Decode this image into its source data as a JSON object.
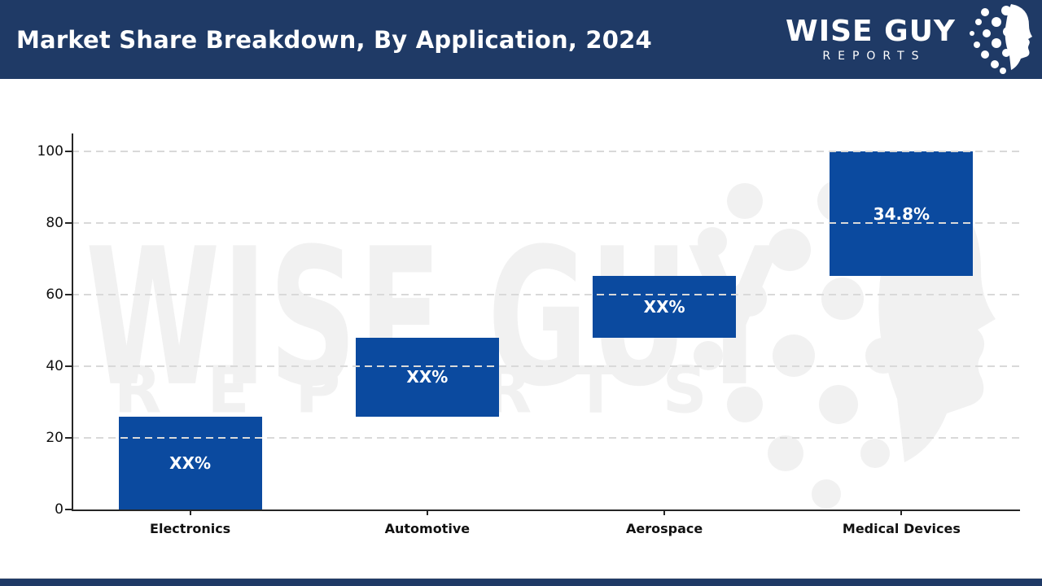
{
  "header": {
    "title": "Market Share Breakdown, By Application, 2024",
    "logo": {
      "line1": "WISE GUY",
      "line2": "REPORTS"
    }
  },
  "watermark": {
    "line1": "WISE GUY",
    "line2": "REPORTS"
  },
  "colors": {
    "header_navy": "#1f3a66",
    "bar_blue": "#0b4a9f",
    "gridline_gray": "#d9d9d9",
    "axis_black": "#262626",
    "watermark_gray": "#f1f1f1"
  },
  "chart_data": {
    "type": "bar",
    "subtype": "floating-waterfall",
    "title": "Market Share Breakdown, By Application, 2024",
    "categories": [
      "Electronics",
      "Automotive",
      "Aerospace",
      "Medical Devices"
    ],
    "segments": [
      {
        "category": "Electronics",
        "start": 0,
        "end": 26,
        "label": "XX%"
      },
      {
        "category": "Automotive",
        "start": 26,
        "end": 48,
        "label": "XX%"
      },
      {
        "category": "Aerospace",
        "start": 48,
        "end": 65.2,
        "label": "XX%"
      },
      {
        "category": "Medical Devices",
        "start": 65.2,
        "end": 100,
        "label": "34.8%"
      }
    ],
    "xlabel": "",
    "ylabel": "",
    "yticks": [
      0,
      20,
      40,
      60,
      80,
      100
    ],
    "ylim": [
      0,
      105
    ],
    "grid": "horizontal-dashed-over-bars",
    "legend": "none",
    "bar_color": "#0b4a9f"
  }
}
